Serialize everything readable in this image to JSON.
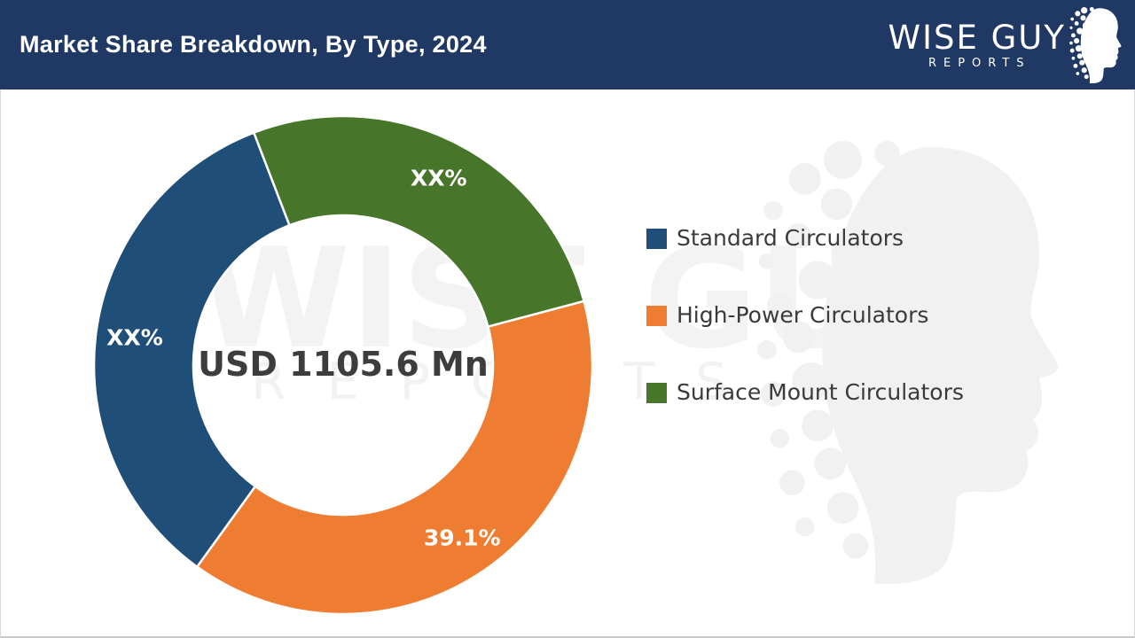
{
  "header": {
    "title": "Market Share Breakdown, By Type, 2024",
    "bg_color": "#1f3864",
    "logo": {
      "line1": "WISE GUY",
      "line2": "REPORTS"
    }
  },
  "chart_data": {
    "type": "pie",
    "subtype": "donut",
    "title": "Market Share Breakdown, By Type, 2024",
    "center_label": "USD 1105.6 Mn",
    "start_angle_deg": 111,
    "direction": "counterclockwise",
    "inner_radius_ratio": 0.6,
    "legend_position": "right",
    "segments": [
      {
        "name": "Standard Circulators",
        "color": "#1f4e79",
        "value_pct": 34.2,
        "data_label": "XX%"
      },
      {
        "name": "High-Power Circulators",
        "color": "#ee7d31",
        "value_pct": 39.1,
        "data_label": "39.1%"
      },
      {
        "name": "Surface Mount Circulators",
        "color": "#47762a",
        "value_pct": 26.7,
        "data_label": "XX%"
      }
    ]
  },
  "watermark": {
    "line1": "WISE GUY",
    "line2": "REPORTS"
  }
}
